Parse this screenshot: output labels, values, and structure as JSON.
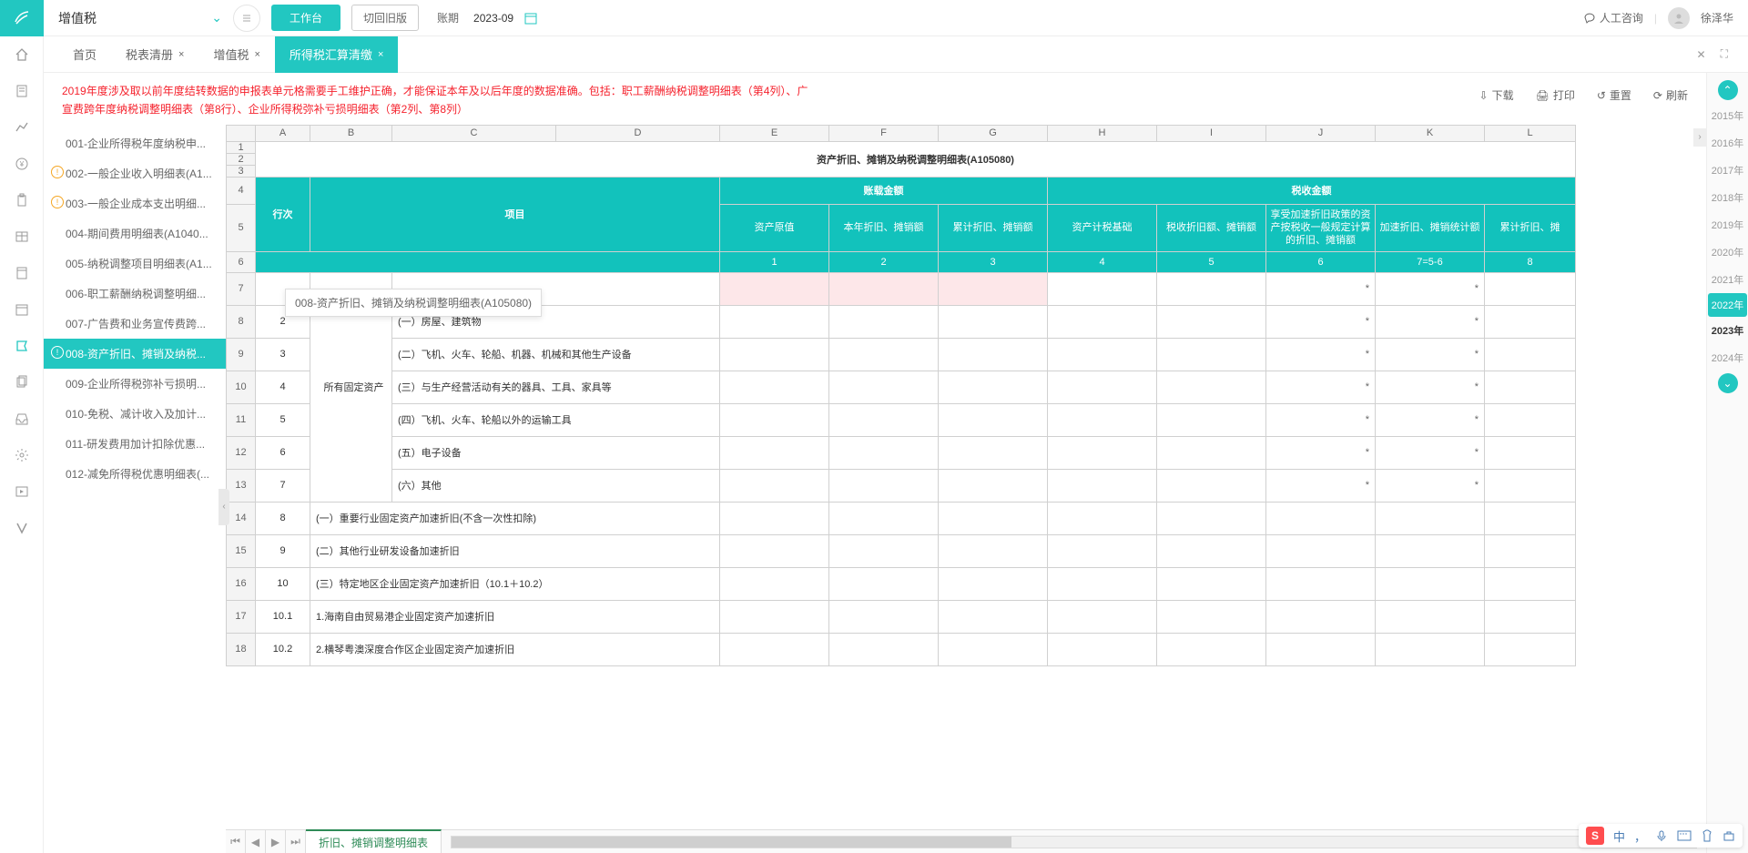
{
  "header": {
    "title": "增值税",
    "workbench_btn": "工作台",
    "switch_old_btn": "切回旧版",
    "period_label": "账期",
    "period_value": "2023-09",
    "consult_label": "人工咨询",
    "user_name": "徐泽华"
  },
  "tabs": [
    {
      "label": "首页",
      "closable": false,
      "active": false
    },
    {
      "label": "税表清册",
      "closable": true,
      "active": false
    },
    {
      "label": "增值税",
      "closable": true,
      "active": false
    },
    {
      "label": "所得税汇算清缴",
      "closable": true,
      "active": true
    }
  ],
  "warning": "2019年度涉及取以前年度结转数据的申报表单元格需要手工维护正确，才能保证本年及以后年度的数据准确。包括：职工薪酬纳税调整明细表（第4列）、广宣费跨年度纳税调整明细表（第8行）、企业所得税弥补亏损明细表（第2列、第8列）",
  "toolbar": {
    "download": "下载",
    "print": "打印",
    "reset": "重置",
    "refresh": "刷新"
  },
  "reports": [
    {
      "label": "001-企业所得税年度纳税申...",
      "warn": false
    },
    {
      "label": "002-一般企业收入明细表(A1...",
      "warn": true
    },
    {
      "label": "003-一般企业成本支出明细...",
      "warn": true
    },
    {
      "label": "004-期间费用明细表(A1040...",
      "warn": false
    },
    {
      "label": "005-纳税调整项目明细表(A1...",
      "warn": false
    },
    {
      "label": "006-职工薪酬纳税调整明细...",
      "warn": false
    },
    {
      "label": "007-广告费和业务宣传费跨...",
      "warn": false
    },
    {
      "label": "008-资产折旧、摊销及纳税...",
      "warn": true,
      "active": true
    },
    {
      "label": "009-企业所得税弥补亏损明...",
      "warn": false
    },
    {
      "label": "010-免税、减计收入及加计...",
      "warn": false
    },
    {
      "label": "011-研发费用加计扣除优惠...",
      "warn": false
    },
    {
      "label": "012-减免所得税优惠明细表(...",
      "warn": false
    }
  ],
  "tooltip": "008-资产折旧、摊销及纳税调整明细表(A105080)",
  "sheet": {
    "columns": [
      "A",
      "B",
      "C",
      "D",
      "E",
      "F",
      "G",
      "H",
      "I",
      "J",
      "K",
      "L"
    ],
    "title": "资产折旧、摊销及纳税调整明细表(A105080)",
    "group_book": "账载金额",
    "group_tax": "税收金额",
    "hdr_row": "行次",
    "hdr_item": "项目",
    "sub_headers": [
      "资产原值",
      "本年折旧、摊销额",
      "累计折旧、摊销额",
      "资产计税基础",
      "税收折旧额、摊销额",
      "享受加速折旧政策的资产按税收一般规定计算的折旧、摊销额",
      "加速折旧、摊销统计额",
      "累计折旧、摊"
    ],
    "num_headers": [
      "1",
      "2",
      "3",
      "4",
      "5",
      "6",
      "7=5-6",
      "8"
    ],
    "fixed_asset_label": "所有固定资产",
    "rows": [
      {
        "r": "8",
        "n": "2",
        "lbl": "(一）房屋、建筑物"
      },
      {
        "r": "9",
        "n": "3",
        "lbl": "(二）飞机、火车、轮船、机器、机械和其他生产设备"
      },
      {
        "r": "10",
        "n": "4",
        "lbl": "(三）与生产经营活动有关的器具、工具、家具等"
      },
      {
        "r": "11",
        "n": "5",
        "lbl": "(四）飞机、火车、轮船以外的运输工具"
      },
      {
        "r": "12",
        "n": "6",
        "lbl": "(五）电子设备"
      },
      {
        "r": "13",
        "n": "7",
        "lbl": "(六）其他"
      },
      {
        "r": "14",
        "n": "8",
        "lbl": "(一）重要行业固定资产加速折旧(不含一次性扣除)"
      },
      {
        "r": "15",
        "n": "9",
        "lbl": "(二）其他行业研发设备加速折旧"
      },
      {
        "r": "16",
        "n": "10",
        "lbl": "(三）特定地区企业固定资产加速折旧（10.1＋10.2）"
      },
      {
        "r": "17",
        "n": "10.1",
        "lbl": "1.海南自由贸易港企业固定资产加速折旧"
      },
      {
        "r": "18",
        "n": "10.2",
        "lbl": "2.横琴粤澳深度合作区企业固定资产加速折旧"
      }
    ],
    "bottom_tab": "折旧、摊销调整明细表"
  },
  "years": [
    "2015年",
    "2016年",
    "2017年",
    "2018年",
    "2019年",
    "2020年",
    "2021年",
    "2022年",
    "2023年",
    "2024年"
  ],
  "active_year": "2022年",
  "current_year": "2023年",
  "ime": {
    "logo": "S",
    "items": [
      "中",
      "，",
      "",
      "",
      "",
      ""
    ]
  },
  "colors": {
    "primary": "#22c7c1",
    "header_teal": "#12c2bc",
    "pink": "#fde7e9",
    "warning": "#f5222d"
  }
}
